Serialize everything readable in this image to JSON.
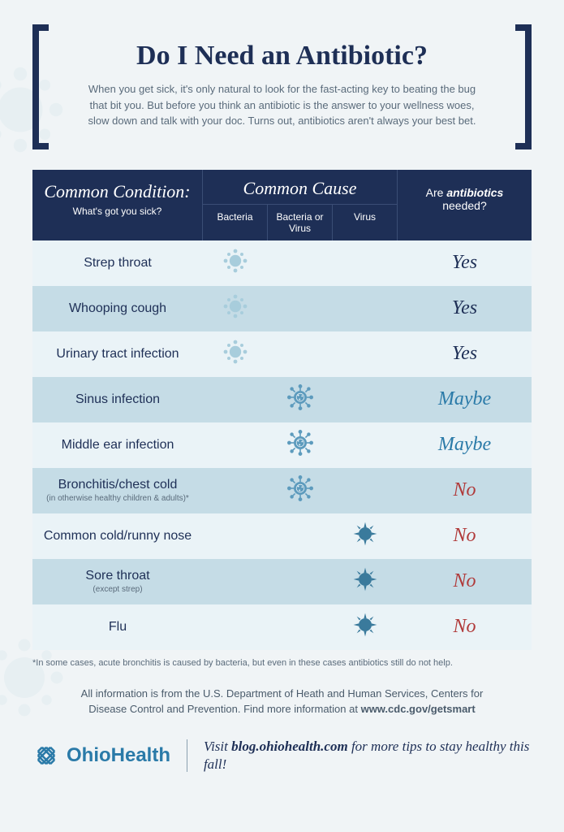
{
  "colors": {
    "navy": "#1e2f56",
    "blue": "#2a7aa8",
    "light_row": "#eaf3f7",
    "dark_row": "#c5dce6",
    "bg": "#f0f4f6",
    "text_muted": "#5a6b7b",
    "icon_light": "#a8cddc",
    "icon_mid": "#5d9bbd",
    "icon_dark": "#3a7a9c",
    "ans_no": "#b03a3a"
  },
  "header": {
    "title": "Do I Need an Antibiotic?",
    "subtitle": "When you get sick, it's only natural to look for the fast-acting key to beating the bug that bit you. But before you think an antibiotic is the answer to your wellness woes, slow down and talk with your doc. Turns out, antibiotics aren't always your best bet."
  },
  "table": {
    "headers": {
      "condition_title": "Common Condition:",
      "condition_sub": "What's got you sick?",
      "cause_group": "Common Cause",
      "cause_bacteria": "Bacteria",
      "cause_both": "Bacteria or Virus",
      "cause_virus": "Virus",
      "needed_pre": "Are ",
      "needed_em": "antibiotics",
      "needed_post": " needed?"
    },
    "rows": [
      {
        "condition": "Strep throat",
        "note": "",
        "cause": "bacteria",
        "answer": "Yes",
        "answer_class": "ans-yes",
        "shade": "light"
      },
      {
        "condition": "Whooping cough",
        "note": "",
        "cause": "bacteria",
        "answer": "Yes",
        "answer_class": "ans-yes",
        "shade": "dark"
      },
      {
        "condition": "Urinary tract infection",
        "note": "",
        "cause": "bacteria",
        "answer": "Yes",
        "answer_class": "ans-yes",
        "shade": "light"
      },
      {
        "condition": "Sinus infection",
        "note": "",
        "cause": "both",
        "answer": "Maybe",
        "answer_class": "ans-maybe",
        "shade": "dark"
      },
      {
        "condition": "Middle ear infection",
        "note": "",
        "cause": "both",
        "answer": "Maybe",
        "answer_class": "ans-maybe",
        "shade": "light"
      },
      {
        "condition": "Bronchitis/chest cold",
        "note": "(in otherwise healthy children & adults)*",
        "cause": "both",
        "answer": "No",
        "answer_class": "ans-no",
        "shade": "dark"
      },
      {
        "condition": "Common cold/runny nose",
        "note": "",
        "cause": "virus",
        "answer": "No",
        "answer_class": "ans-no",
        "shade": "light"
      },
      {
        "condition": "Sore throat",
        "note": "(except strep)",
        "cause": "virus",
        "answer": "No",
        "answer_class": "ans-no",
        "shade": "dark"
      },
      {
        "condition": "Flu",
        "note": "",
        "cause": "virus",
        "answer": "No",
        "answer_class": "ans-no",
        "shade": "light"
      }
    ]
  },
  "footnote": "*In some cases, acute bronchitis is caused by bacteria, but even in these cases antibiotics still do not help.",
  "source": {
    "line1": "All information is from the U.S. Department of Heath and Human Services, Centers for",
    "line2": "Disease Control and Prevention. Find more information at ",
    "url": "www.cdc.gov/getsmart"
  },
  "footer": {
    "logo_text": "OhioHealth",
    "visit_pre": "Visit ",
    "visit_url": "blog.ohiohealth.com",
    "visit_post": " for more tips to stay healthy this fall!"
  }
}
